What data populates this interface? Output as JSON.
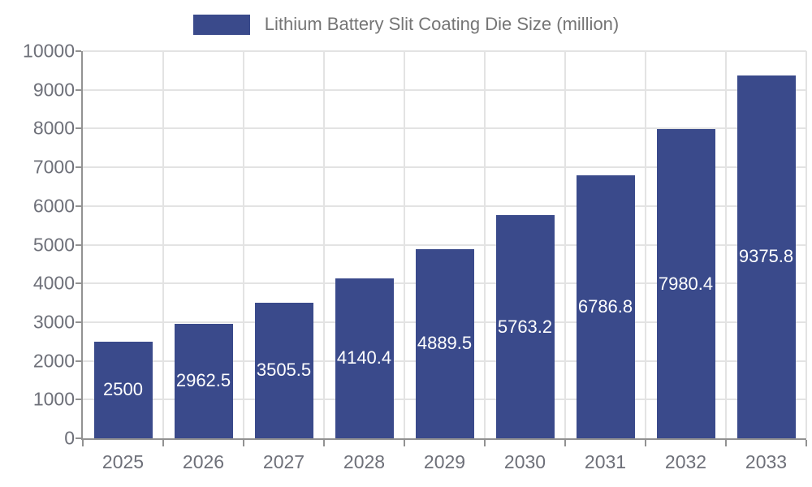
{
  "chart_data": {
    "type": "bar",
    "title": "Lithium Battery Slit Coating Die Size (million)",
    "legend": {
      "label": "Lithium Battery Slit Coating Die Size (million)",
      "position": "top-center"
    },
    "categories": [
      "2025",
      "2026",
      "2027",
      "2028",
      "2029",
      "2030",
      "2031",
      "2032",
      "2033"
    ],
    "values": [
      2500,
      2962.5,
      3505.5,
      4140.4,
      4889.5,
      5763.2,
      6786.8,
      7980.4,
      9375.8
    ],
    "value_labels": [
      "2500",
      "2962.5",
      "3505.5",
      "4140.4",
      "4889.5",
      "5763.2",
      "6786.8",
      "7980.4",
      "9375.8"
    ],
    "xlabel": "",
    "ylabel": "",
    "ylim": [
      0,
      10000
    ],
    "y_ticks": [
      0,
      1000,
      2000,
      3000,
      4000,
      5000,
      6000,
      7000,
      8000,
      9000,
      10000
    ],
    "grid": true,
    "colors": {
      "bar": "#3A4A8B",
      "value_label": "#FFFFFF",
      "axis_text": "#6E7079",
      "legend_text": "#757575",
      "grid_line": "#E3E3E3",
      "axis_line": "#929292",
      "background": "#FFFFFF"
    }
  }
}
